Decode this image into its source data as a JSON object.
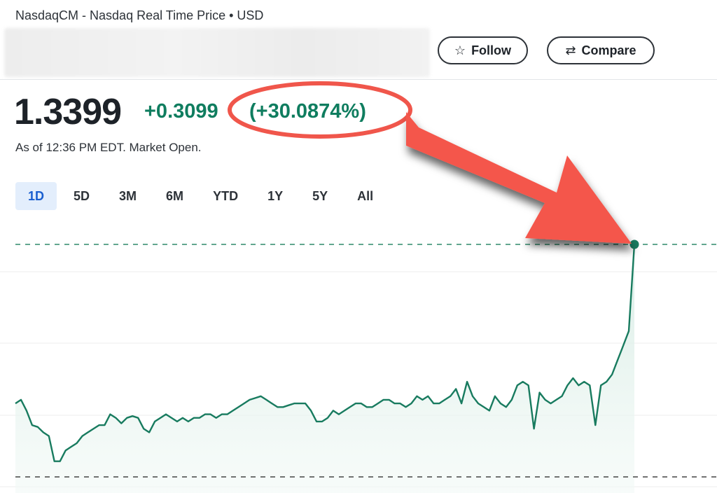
{
  "header": {
    "exchange_line": "NasdaqCM - Nasdaq Real Time Price • USD"
  },
  "actions": {
    "follow_label": "Follow",
    "compare_label": "Compare"
  },
  "quote": {
    "price": "1.3399",
    "change": "+0.3099",
    "change_percent": "(+30.0874%)",
    "as_of": "As of 12:36 PM EDT. Market Open."
  },
  "ranges": [
    "1D",
    "5D",
    "3M",
    "6M",
    "YTD",
    "1Y",
    "5Y",
    "All"
  ],
  "active_range": "1D",
  "colors": {
    "line": "#187b5f",
    "fill": "#e2f1ec",
    "annotation": "#f0564b",
    "active_tab_bg": "#e3eefc",
    "active_tab_text": "#1a5fd0"
  },
  "chart_data": {
    "type": "area",
    "series": [
      {
        "values": [
          0.9,
          0.91,
          0.88,
          0.84,
          0.835,
          0.82,
          0.81,
          0.74,
          0.74,
          0.77,
          0.78,
          0.79,
          0.81,
          0.82,
          0.83,
          0.84,
          0.84,
          0.87,
          0.86,
          0.845,
          0.86,
          0.865,
          0.86,
          0.83,
          0.82,
          0.85,
          0.86,
          0.87,
          0.86,
          0.85,
          0.86,
          0.85,
          0.86,
          0.86,
          0.87,
          0.87,
          0.86,
          0.87,
          0.87,
          0.88,
          0.89,
          0.9,
          0.91,
          0.915,
          0.92,
          0.91,
          0.9,
          0.89,
          0.89,
          0.895,
          0.9,
          0.9,
          0.9,
          0.88,
          0.85,
          0.85,
          0.86,
          0.88,
          0.87,
          0.88,
          0.89,
          0.9,
          0.9,
          0.89,
          0.89,
          0.9,
          0.91,
          0.91,
          0.9,
          0.9,
          0.89,
          0.9,
          0.92,
          0.91,
          0.92,
          0.9,
          0.9,
          0.91,
          0.92,
          0.94,
          0.9,
          0.96,
          0.92,
          0.9,
          0.89,
          0.88,
          0.92,
          0.9,
          0.89,
          0.91,
          0.95,
          0.96,
          0.95,
          0.83,
          0.93,
          0.91,
          0.9,
          0.91,
          0.92,
          0.95,
          0.97,
          0.95,
          0.96,
          0.95,
          0.84,
          0.95,
          0.96,
          0.98,
          1.02,
          1.06,
          1.1,
          1.3399
        ]
      }
    ],
    "marker": "last"
  }
}
